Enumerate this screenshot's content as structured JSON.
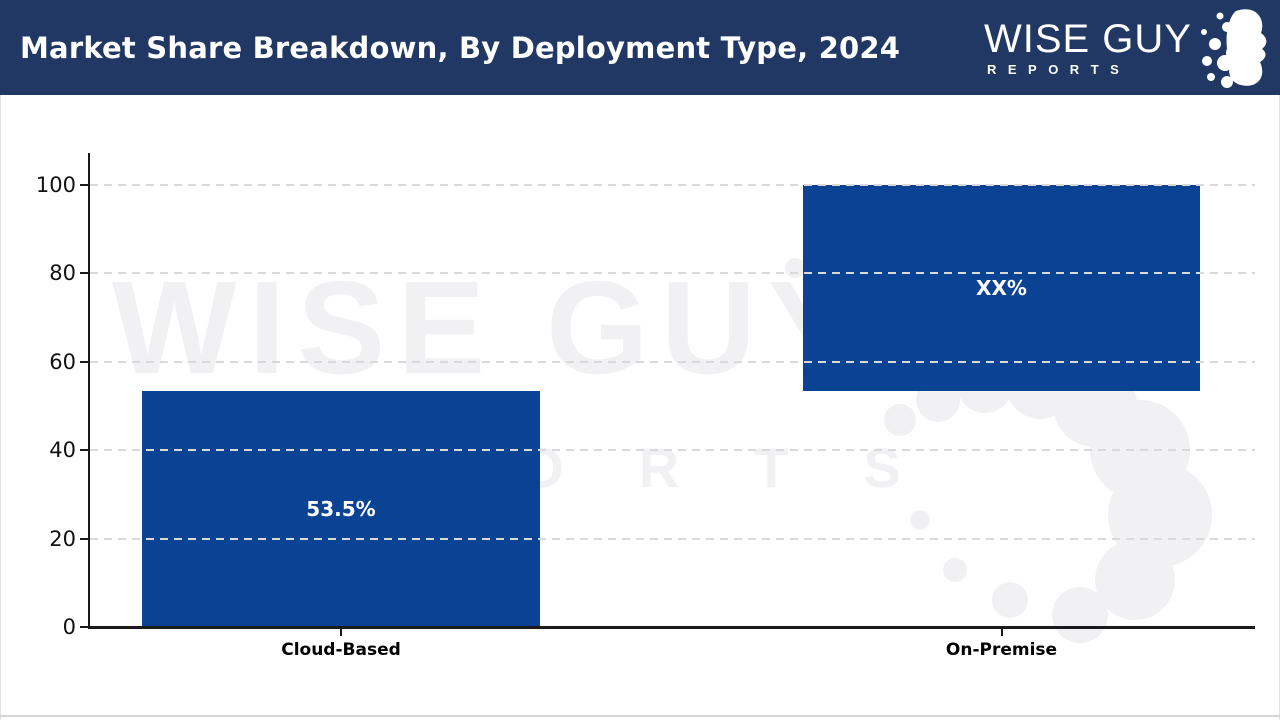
{
  "header": {
    "title": "Market Share Breakdown, By Deployment Type, 2024",
    "logo": {
      "primary": "WISE GUY",
      "secondary": "REPORTS"
    },
    "colors": {
      "background": "#203863",
      "text": "#FFFFFF"
    }
  },
  "watermark": {
    "primary": "WISE GUY",
    "secondary": "REPORTS"
  },
  "chart_data": {
    "type": "bar",
    "title": "Market Share Breakdown, By Deployment Type, 2024",
    "categories": [
      "Cloud-Based",
      "On-Premise"
    ],
    "bars": [
      {
        "category": "Cloud-Based",
        "start": 0,
        "end": 53.5,
        "label": "53.5%"
      },
      {
        "category": "On-Premise",
        "start": 53.5,
        "end": 100,
        "label": "XX%"
      }
    ],
    "ylim": [
      0,
      100
    ],
    "yticks": [
      0,
      20,
      40,
      60,
      80,
      100
    ],
    "xlabel": "",
    "ylabel": "",
    "grid": "horizontal-dashed",
    "legend": "none",
    "colors": {
      "bar": "#0A4294",
      "bar_label": "#FFFFFF",
      "gridline": "#D9D9D9",
      "axis": "#1A1A1A",
      "tick_label": "#111111"
    }
  }
}
